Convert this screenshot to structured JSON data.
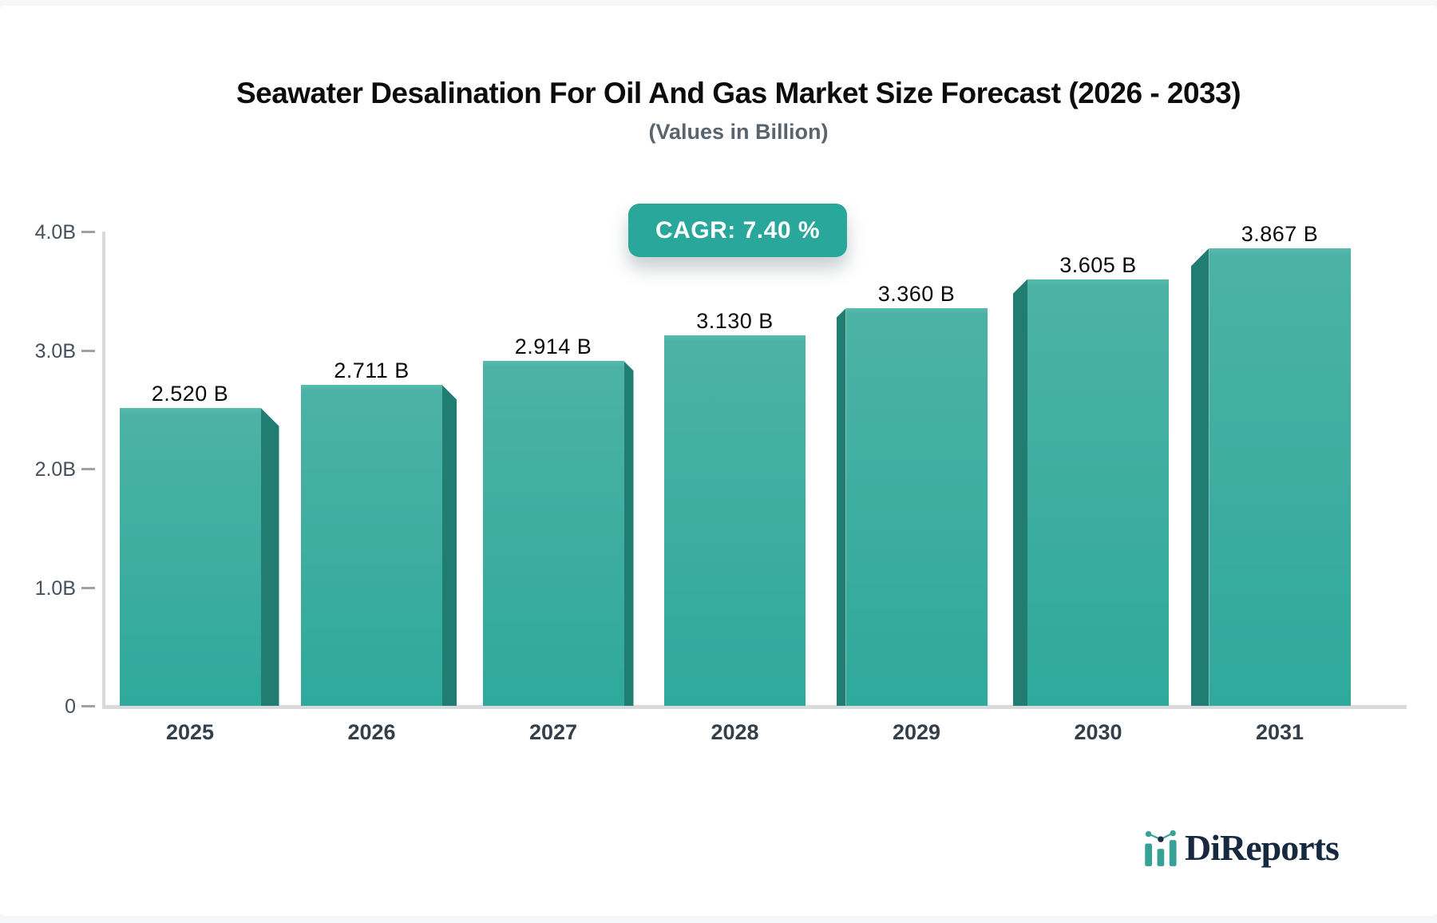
{
  "title": "Seawater Desalination For Oil And Gas Market Size Forecast (2026 - 2033)",
  "subtitle": "(Values in Billion)",
  "cagr_badge_label": "CAGR: 7.40 %",
  "colors": {
    "bar_top": "#4cb2a6",
    "bar_bottom": "#2ea99b",
    "bar_side": "#217d71",
    "badge_bg": "#2aa79b",
    "axis_line": "#d8dbde",
    "tick_dash": "#9aa3ac",
    "tick_label": "#46515c",
    "x_label": "#333f4a",
    "value_label": "#0b0b0b",
    "logo_navy": "#16293e",
    "logo_teal": "#35a197"
  },
  "chart_data": {
    "type": "bar",
    "title": "Seawater Desalination For Oil And Gas Market Size Forecast (2026 - 2033)",
    "subtitle": "(Values in Billion)",
    "categories": [
      "2025",
      "2026",
      "2027",
      "2028",
      "2029",
      "2030",
      "2031"
    ],
    "values": [
      2.52,
      2.711,
      2.914,
      3.13,
      3.36,
      3.605,
      3.867
    ],
    "value_labels": [
      "2.520 B",
      "2.711 B",
      "2.914 B",
      "3.130 B",
      "3.360 B",
      "3.605 B",
      "3.867 B"
    ],
    "y_ticks": [
      {
        "label": "4.0B",
        "value": 4.0
      },
      {
        "label": "3.0B",
        "value": 3.0
      },
      {
        "label": "2.0B",
        "value": 2.0
      },
      {
        "label": "1.0B",
        "value": 1.0
      },
      {
        "label": "0",
        "value": 0.0
      }
    ],
    "ylim": [
      0,
      4.0
    ],
    "xlabel": "",
    "ylabel": "",
    "grid": false,
    "legend": false,
    "annotation": "CAGR: 7.40 %"
  },
  "logo": {
    "text": "DiReports",
    "icon": "bar-chart-trend-icon"
  }
}
